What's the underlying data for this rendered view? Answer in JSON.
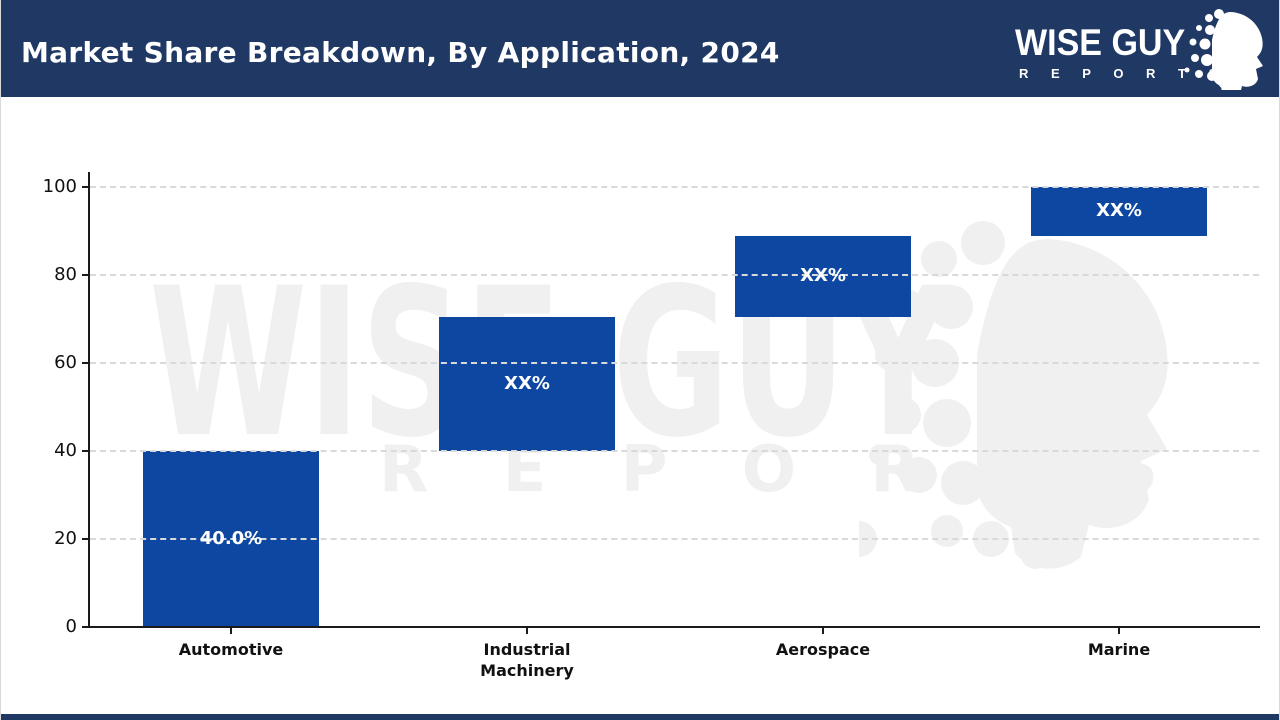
{
  "header": {
    "title": "Market Share Breakdown, By Application, 2024",
    "bg_color": "#1f3864",
    "logo": {
      "line1": "WISE GUY",
      "line2": "R E P O R T S"
    }
  },
  "watermark": {
    "line1": "WISE GUY",
    "line2": "R E P O R T S"
  },
  "chart_data": {
    "type": "bar",
    "subtype": "waterfall",
    "title": "Market Share Breakdown, By Application, 2024",
    "categories": [
      "Automotive",
      "Industrial Machinery",
      "Aerospace",
      "Marine"
    ],
    "segments": [
      {
        "category": "Automotive",
        "start": 0,
        "end": 40,
        "label": "40.0%"
      },
      {
        "category": "Industrial Machinery",
        "start": 40,
        "end": 70.5,
        "label": "XX%"
      },
      {
        "category": "Aerospace",
        "start": 70.5,
        "end": 88.9,
        "label": "XX%"
      },
      {
        "category": "Marine",
        "start": 88.9,
        "end": 100,
        "label": "XX%"
      }
    ],
    "y_ticks": [
      0,
      20,
      40,
      60,
      80,
      100
    ],
    "ylim": [
      0,
      100
    ],
    "xlabel": "",
    "ylabel": "",
    "grid": "horizontal-dashed",
    "legend": "none",
    "bar_color": "#0d47a1",
    "bar_label_color": "#ffffff",
    "grid_color": "#d9d9d9",
    "axis_color": "#1a1a1a"
  }
}
